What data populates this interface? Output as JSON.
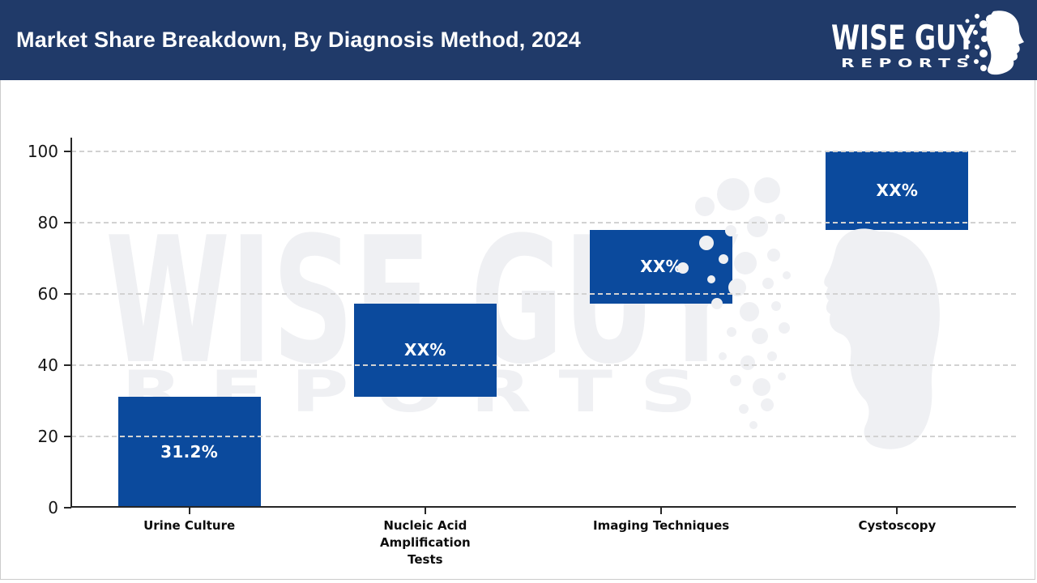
{
  "header": {
    "title": "Market Share Breakdown, By Diagnosis Method, 2024",
    "logo": {
      "name": "Wise Guy Reports logo",
      "line1": "WISE GUY",
      "line2": "R E P O R T S"
    }
  },
  "watermark": {
    "line1": "WISE GUY",
    "line2": "R E P O R T S"
  },
  "colors": {
    "header_bg": "#203a69",
    "bar": "#0b4a9d",
    "grid": "#d2d2d2",
    "axis": "#262626",
    "bar_label": "#ffffff",
    "watermark": "#eff0f3",
    "tick_label": "#151515",
    "category_label": "#0d0d0d"
  },
  "chart_data": {
    "type": "bar",
    "variant": "waterfall",
    "title": "Market Share Breakdown, By Diagnosis Method, 2024",
    "categories": [
      "Urine Culture",
      "Nucleic Acid Amplification Tests",
      "Imaging Techniques",
      "Cystoscopy"
    ],
    "category_lines": [
      [
        "Urine Culture"
      ],
      [
        "Nucleic Acid",
        "Amplification",
        "Tests"
      ],
      [
        "Imaging Techniques"
      ],
      [
        "Cystoscopy"
      ]
    ],
    "segments": [
      {
        "from": 0,
        "to": 31.2
      },
      {
        "from": 31.2,
        "to": 57.3
      },
      {
        "from": 57.3,
        "to": 78.0
      },
      {
        "from": 78.0,
        "to": 100
      }
    ],
    "bar_labels": [
      "31.2%",
      "XX%",
      "XX%",
      "XX%"
    ],
    "yticks": [
      0,
      20,
      40,
      60,
      80,
      100
    ],
    "ylim": [
      0,
      104
    ],
    "xlabel": "",
    "ylabel": "",
    "grid": "horizontal-dashed",
    "legend": null
  }
}
